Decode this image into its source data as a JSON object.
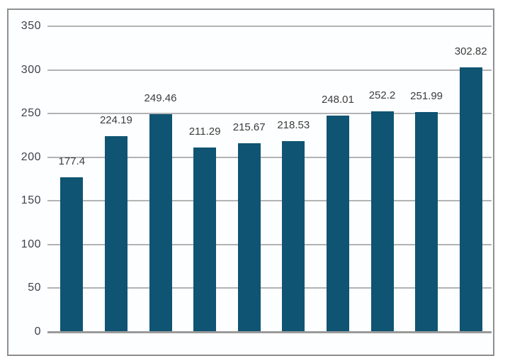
{
  "chart_data": {
    "type": "bar",
    "title": "",
    "xlabel": "",
    "ylabel": "",
    "categories": [
      "",
      "",
      "",
      "",
      "",
      "",
      "",
      "",
      "",
      ""
    ],
    "values": [
      177.4,
      224.19,
      249.46,
      211.29,
      215.67,
      218.53,
      248.01,
      252.2,
      251.99,
      302.82
    ],
    "data_labels": [
      "177.4",
      "224.19",
      "249.46",
      "211.29",
      "215.67",
      "218.53",
      "248.01",
      "252.2",
      "251.99",
      "302.82"
    ],
    "y_ticks": [
      0,
      50,
      100,
      150,
      200,
      250,
      300,
      350
    ],
    "y_tick_labels": [
      "0",
      "50",
      "100",
      "150",
      "200",
      "250",
      "300",
      "350"
    ],
    "ylim": [
      0,
      350
    ],
    "grid": true,
    "legend": "none",
    "x_axis_labels_visible": false,
    "colors": {
      "bar": "#0f5472",
      "gridline": "#b3b3b3",
      "axis_line": "#9a9a9a",
      "frame_border": "#8f8f8f",
      "tick_text": "#3d424a",
      "label_text": "#3c3c3c",
      "background": "#fdfeff"
    }
  }
}
